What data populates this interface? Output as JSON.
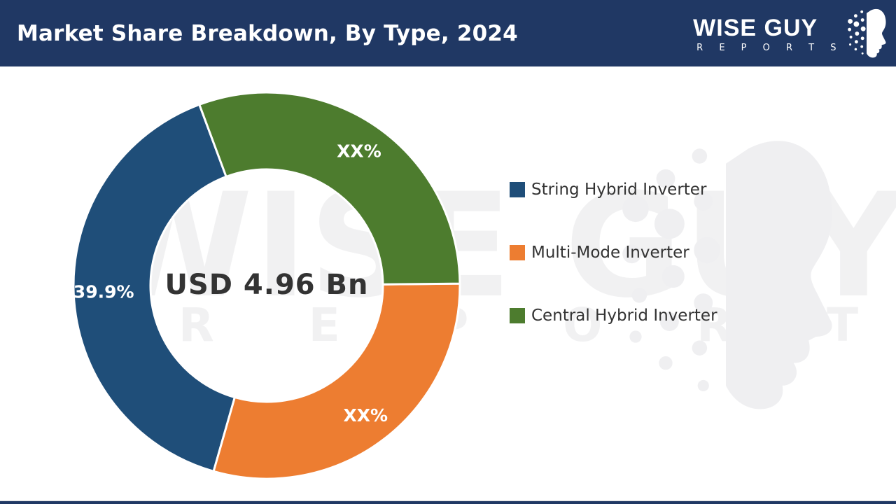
{
  "header": {
    "title": "Market Share Breakdown, By Type, 2024",
    "logo": {
      "line1": "WISE GUY",
      "line2": "R E P O R T S"
    }
  },
  "colors": {
    "header_bg": "#203864",
    "footer_bg": "#203864",
    "text_dark": "#333333",
    "watermark": "#f1f1f2"
  },
  "watermark": {
    "line1": "WISE GUY",
    "line2": "R E P O R T S"
  },
  "chart_data": {
    "type": "pie",
    "donut": true,
    "title": "Market Share Breakdown, By Type, 2024",
    "center_label": "USD 4.96 Bn",
    "start_angle_deg": 110.4,
    "counterclockwise": true,
    "legend_position": "right",
    "segments": [
      {
        "name": "String Hybrid Inverter",
        "value_pct": 39.9,
        "display_label": "39.9%",
        "color": "#1f4e79"
      },
      {
        "name": "Multi-Mode Inverter",
        "value_pct": 29.6,
        "display_label": "XX%",
        "color": "#ed7d31"
      },
      {
        "name": "Central Hybrid Inverter",
        "value_pct": 30.5,
        "display_label": "XX%",
        "color": "#4d7c2e"
      }
    ]
  }
}
